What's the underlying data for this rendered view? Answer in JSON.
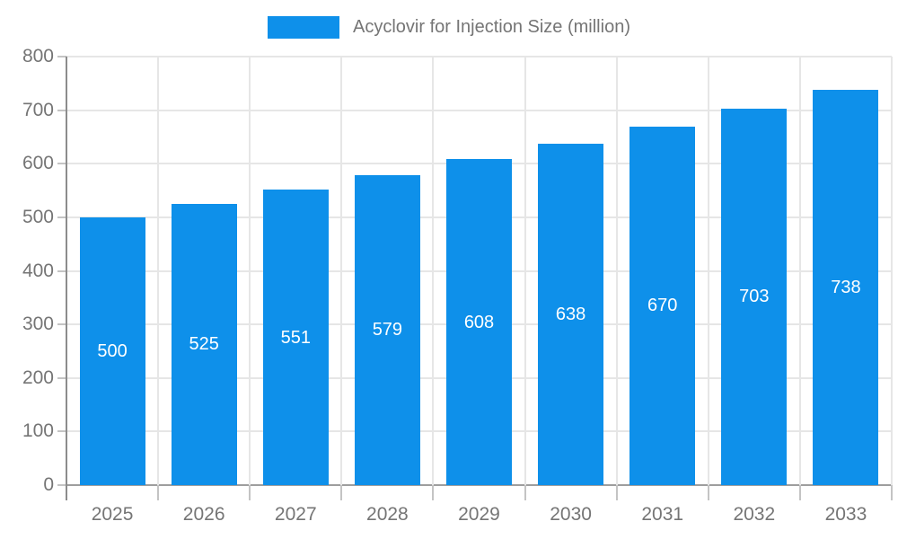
{
  "chart_data": {
    "type": "bar",
    "title": "",
    "legend": "Acyclovir for Injection Size (million)",
    "categories": [
      "2025",
      "2026",
      "2027",
      "2028",
      "2029",
      "2030",
      "2031",
      "2032",
      "2033"
    ],
    "values": [
      500,
      525,
      551,
      579,
      608,
      638,
      670,
      703,
      738
    ],
    "xlabel": "",
    "ylabel": "",
    "ylim": [
      0,
      800
    ],
    "ytick_step": 100,
    "ytick_labels": [
      "0",
      "100",
      "200",
      "300",
      "400",
      "500",
      "600",
      "700",
      "800"
    ],
    "grid": true,
    "legend_position": "top",
    "value_labels": "inside-center",
    "colors": {
      "bar": "#0e90ea",
      "value_label": "#ffffff",
      "axis_text": "#757575",
      "grid_line": "#e6e6e6",
      "axis_line": "#8c8c8c",
      "baseline": "#9e9e9e",
      "tick": "#c4c4c4",
      "background": "#ffffff"
    }
  }
}
